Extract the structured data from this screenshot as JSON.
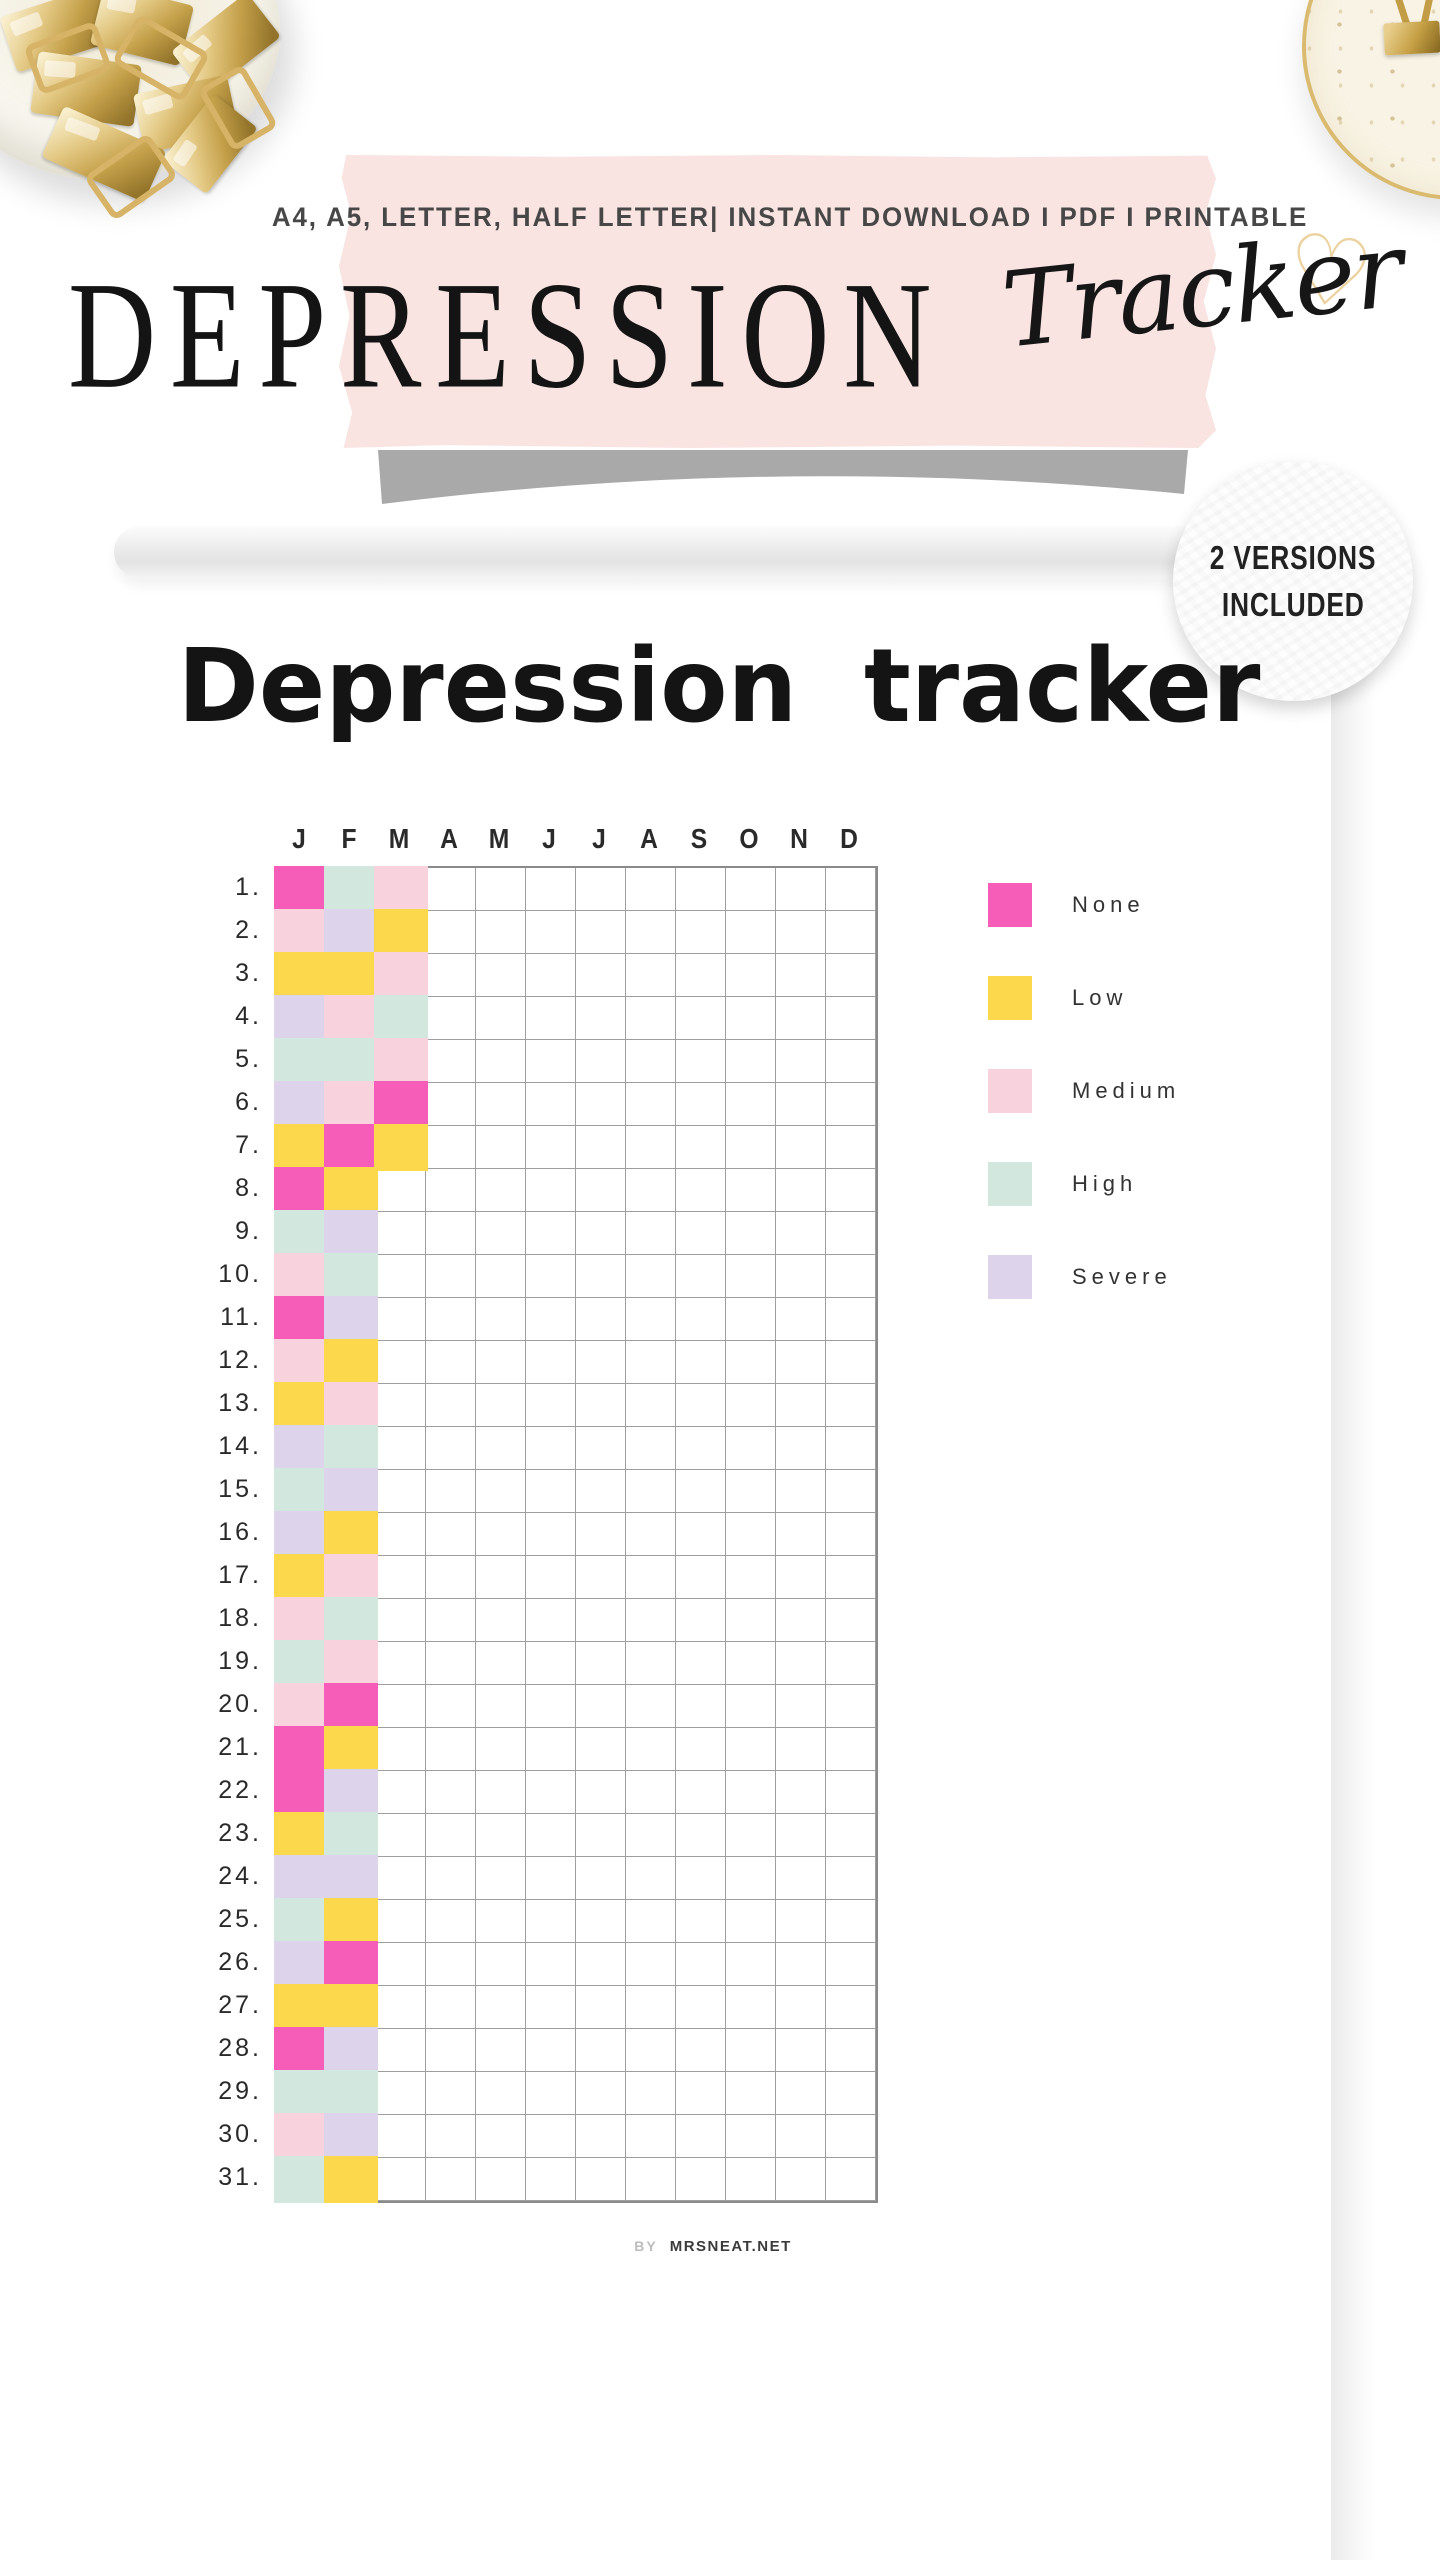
{
  "banner": {
    "formats_line": "A4, A5, LETTER, HALF LETTER| INSTANT DOWNLOAD I PDF I PRINTABLE",
    "title_main": "DEPRESSION",
    "title_script": "Tracker",
    "heart_icon": "♡",
    "tape_color": "#f9e4e2"
  },
  "badge": {
    "line1": "2 VERSIONS",
    "line2": "INCLUDED"
  },
  "page": {
    "title": "Depression tracker",
    "credit_prefix": "BY",
    "credit_site": "MRSNEAT.NET"
  },
  "legend": {
    "items": [
      {
        "label": "None",
        "level": "none",
        "color": "#f65db8"
      },
      {
        "label": "Low",
        "level": "low",
        "color": "#fcd94c"
      },
      {
        "label": "Medium",
        "level": "medium",
        "color": "#f8d2dc"
      },
      {
        "label": "High",
        "level": "high",
        "color": "#d2e8df"
      },
      {
        "label": "Severe",
        "level": "severe",
        "color": "#ddd3ea"
      }
    ]
  },
  "decor": {
    "top_left": "bowl-of-gold-binder-clips",
    "top_right": "gold-rim-speckled-dish-with-binder-clip"
  },
  "chart_data": {
    "type": "heatmap",
    "title": "Depression tracker",
    "x_labels": [
      "J",
      "F",
      "M",
      "A",
      "M",
      "J",
      "J",
      "A",
      "S",
      "O",
      "N",
      "D"
    ],
    "y_labels": [
      1,
      2,
      3,
      4,
      5,
      6,
      7,
      8,
      9,
      10,
      11,
      12,
      13,
      14,
      15,
      16,
      17,
      18,
      19,
      20,
      21,
      22,
      23,
      24,
      25,
      26,
      27,
      28,
      29,
      30,
      31
    ],
    "legend_levels": {
      "none": "None",
      "low": "Low",
      "medium": "Medium",
      "high": "High",
      "severe": "Severe"
    },
    "cells": [
      [
        "none",
        "high",
        "medium"
      ],
      [
        "medium",
        "severe",
        "low"
      ],
      [
        "low",
        "low",
        "medium"
      ],
      [
        "severe",
        "medium",
        "high"
      ],
      [
        "high",
        "high",
        "medium"
      ],
      [
        "severe",
        "medium",
        "none"
      ],
      [
        "low",
        "none",
        "low"
      ],
      [
        "none",
        "low"
      ],
      [
        "high",
        "severe"
      ],
      [
        "medium",
        "high"
      ],
      [
        "none",
        "severe"
      ],
      [
        "medium",
        "low"
      ],
      [
        "low",
        "medium"
      ],
      [
        "severe",
        "high"
      ],
      [
        "high",
        "severe"
      ],
      [
        "severe",
        "low"
      ],
      [
        "low",
        "medium"
      ],
      [
        "medium",
        "high"
      ],
      [
        "high",
        "medium"
      ],
      [
        "medium",
        "none"
      ],
      [
        "none",
        "low"
      ],
      [
        "none",
        "severe"
      ],
      [
        "low",
        "high"
      ],
      [
        "severe",
        "severe"
      ],
      [
        "high",
        "low"
      ],
      [
        "severe",
        "none"
      ],
      [
        "low",
        "low"
      ],
      [
        "none",
        "severe"
      ],
      [
        "high",
        "high"
      ],
      [
        "medium",
        "severe"
      ],
      [
        "high",
        "low"
      ]
    ]
  }
}
